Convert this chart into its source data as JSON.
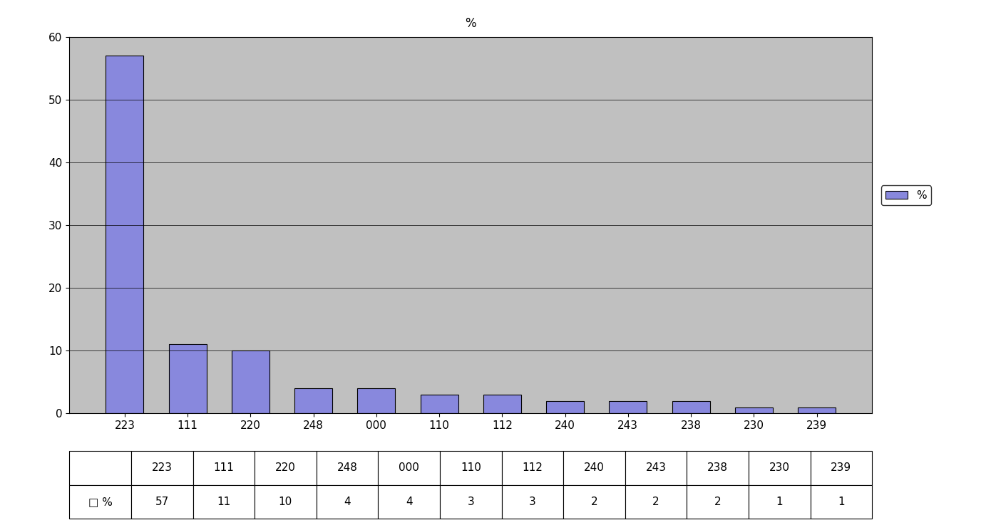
{
  "title": "%",
  "categories": [
    "223",
    "111",
    "220",
    "248",
    "000",
    "110",
    "112",
    "240",
    "243",
    "238",
    "230",
    "239"
  ],
  "values": [
    57,
    11,
    10,
    4,
    4,
    3,
    3,
    2,
    2,
    2,
    1,
    1
  ],
  "bar_color": "#8888dd",
  "bar_edgecolor": "#000000",
  "ylim": [
    0,
    60
  ],
  "yticks": [
    0,
    10,
    20,
    30,
    40,
    50,
    60
  ],
  "background_color": "#c0c0c0",
  "plot_area_color": "#c0c0c0",
  "legend_label": "%",
  "legend_facecolor": "#8888dd",
  "title_fontsize": 12,
  "tick_fontsize": 11,
  "table_row1_label": "□ %",
  "figsize": [
    13.9,
    7.44
  ],
  "dpi": 100
}
